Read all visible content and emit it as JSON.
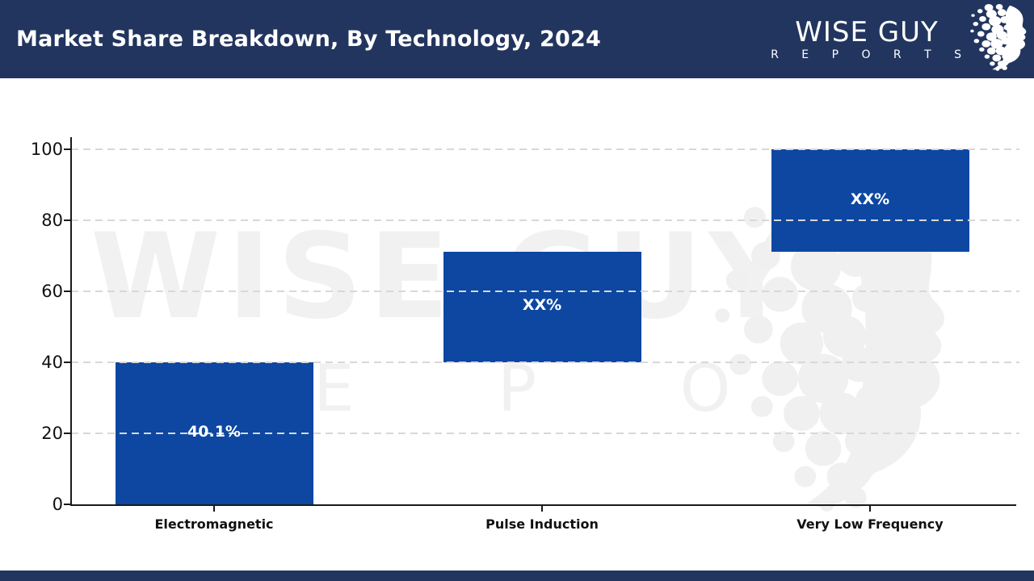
{
  "header": {
    "title": "Market Share Breakdown, By Technology, 2024",
    "logo": {
      "line1": "WISE GUY",
      "line2": "R E P O R T S"
    }
  },
  "watermark": {
    "line1": "WISE GUY",
    "line2": "R E P O R T S"
  },
  "colors": {
    "header_bg": "#22355f",
    "bar": "#0d47a1",
    "gridline": "#d8d8d8",
    "axis": "#1a1a1a",
    "bar_label": "#ffffff",
    "watermark": "#f1f1f1"
  },
  "chart_data": {
    "type": "bar",
    "subtype": "waterfall-floating-bars",
    "title": "Market Share Breakdown, By Technology, 2024",
    "categories": [
      "Electromagnetic",
      "Pulse Induction",
      "Very Low Frequency"
    ],
    "series": [
      {
        "name": "Market Share",
        "segments": [
          {
            "category": "Electromagnetic",
            "start": 0,
            "end": 40.1,
            "label": "40.1%"
          },
          {
            "category": "Pulse Induction",
            "start": 40.1,
            "end": 71.1,
            "label": "XX%"
          },
          {
            "category": "Very Low Frequency",
            "start": 71.1,
            "end": 100,
            "label": "XX%"
          }
        ]
      }
    ],
    "ylim": [
      0,
      100
    ],
    "yticks": [
      0,
      20,
      40,
      60,
      80,
      100
    ],
    "xlabel": "",
    "ylabel": "",
    "grid": "horizontal-dashed",
    "legend": "none"
  }
}
